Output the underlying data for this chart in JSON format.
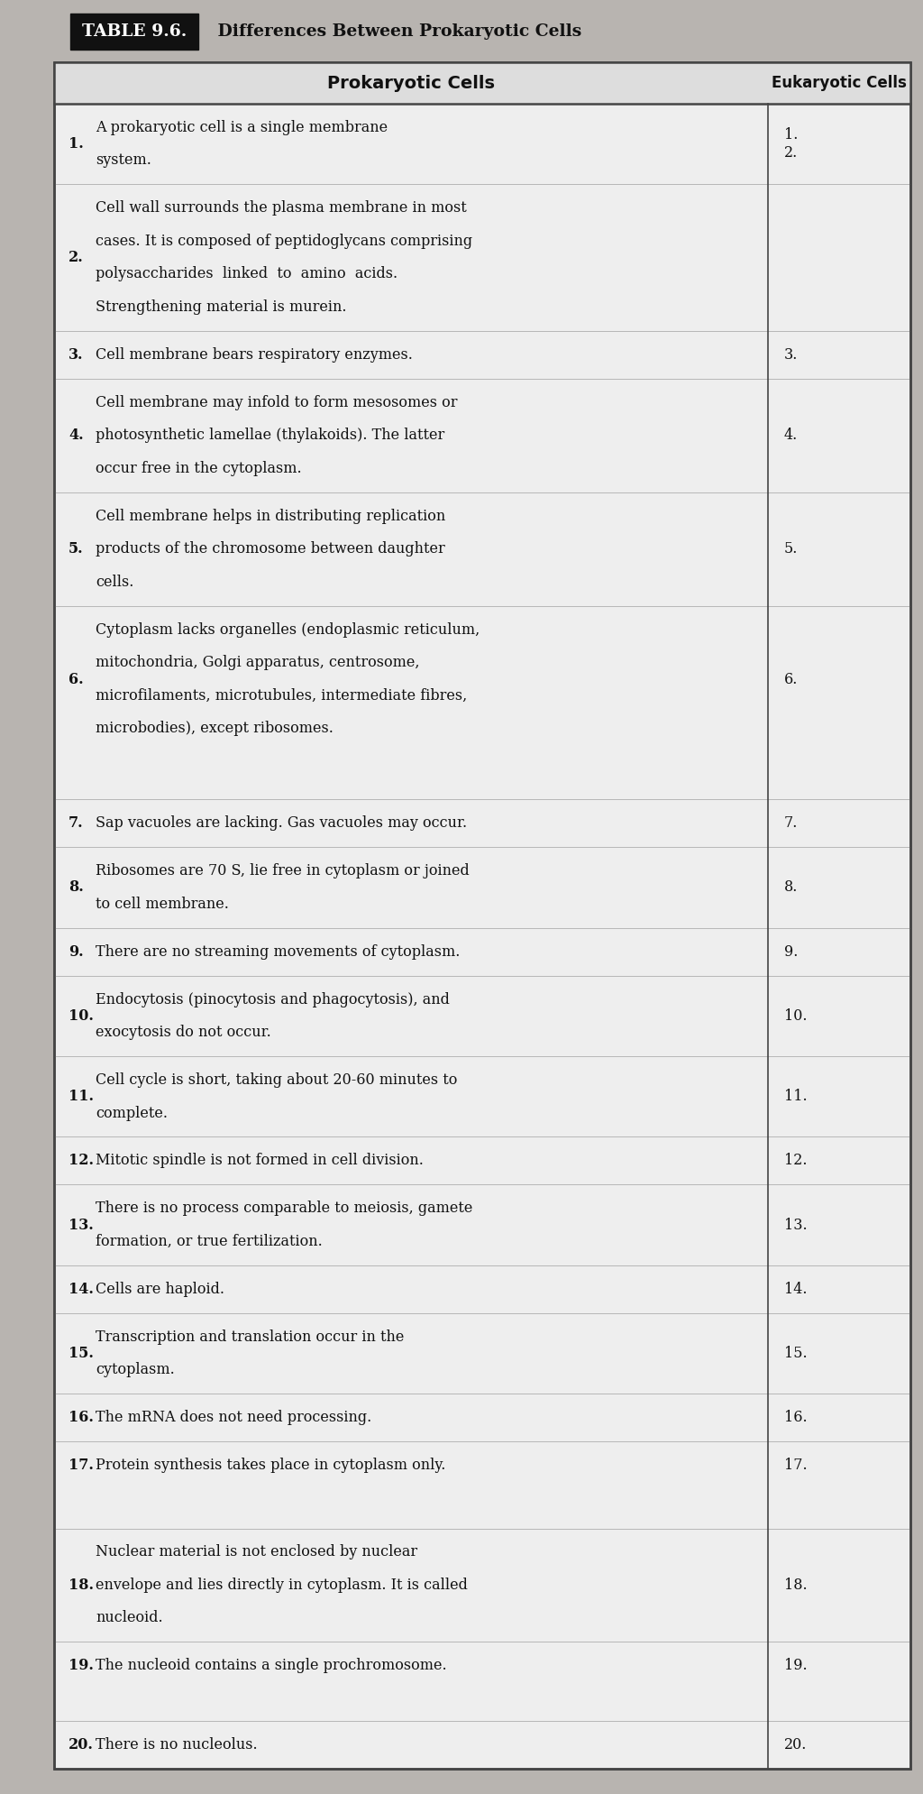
{
  "title_box_text": "TABLE 9.6.",
  "title_rest": " Differences Between Prokaryotic Cells",
  "col1_header": "Prokaryotic Cells",
  "col2_header": "Eukaryotic Cells",
  "bg_color": "#b8b4b0",
  "table_bg": "#eeeeee",
  "header_bg": "#dddddd",
  "title_box_bg": "#111111",
  "title_box_fg": "#ffffff",
  "body_fontsize": 11.5,
  "rows": [
    {
      "num": "1.",
      "lines": [
        "A prokaryotic cell is a single membrane",
        "system."
      ],
      "eukaryotic": "1.\n2."
    },
    {
      "num": "2.",
      "lines": [
        "Cell wall surrounds the plasma membrane in most",
        "cases. It is composed of peptidoglycans comprising",
        "polysaccharides  linked  to  amino  acids.",
        "Strengthening material is murein."
      ],
      "eukaryotic": ""
    },
    {
      "num": "3.",
      "lines": [
        "Cell membrane bears respiratory enzymes."
      ],
      "eukaryotic": "3."
    },
    {
      "num": "4.",
      "lines": [
        "Cell membrane may infold to form mesosomes or",
        "photosynthetic lamellae (thylakoids). The latter",
        "occur free in the cytoplasm."
      ],
      "eukaryotic": "4."
    },
    {
      "num": "5.",
      "lines": [
        "Cell membrane helps in distributing replication",
        "products of the chromosome between daughter",
        "cells."
      ],
      "eukaryotic": "5."
    },
    {
      "num": "6.",
      "lines": [
        "Cytoplasm lacks organelles (endoplasmic reticulum,",
        "mitochondria, Golgi apparatus, centrosome,",
        "microfilaments, microtubules, intermediate fibres,",
        "microbodies), except ribosomes."
      ],
      "eukaryotic": "6."
    },
    {
      "num": "7.",
      "lines": [
        "Sap vacuoles are lacking. Gas vacuoles may occur."
      ],
      "eukaryotic": "7."
    },
    {
      "num": "8.",
      "lines": [
        "Ribosomes are 70 S, lie free in cytoplasm or joined",
        "to cell membrane."
      ],
      "eukaryotic": "8."
    },
    {
      "num": "9.",
      "lines": [
        "There are no streaming movements of cytoplasm."
      ],
      "eukaryotic": "9."
    },
    {
      "num": "10.",
      "lines": [
        "Endocytosis (pinocytosis and phagocytosis), and",
        "exocytosis do not occur."
      ],
      "eukaryotic": "10."
    },
    {
      "num": "11.",
      "lines": [
        "Cell cycle is short, taking about 20-60 minutes to",
        "complete."
      ],
      "eukaryotic": "11."
    },
    {
      "num": "12.",
      "lines": [
        "Mitotic spindle is not formed in cell division."
      ],
      "eukaryotic": "12."
    },
    {
      "num": "13.",
      "lines": [
        "There is no process comparable to meiosis, gamete",
        "formation, or true fertilization."
      ],
      "eukaryotic": "13."
    },
    {
      "num": "14.",
      "lines": [
        "Cells are haploid."
      ],
      "eukaryotic": "14."
    },
    {
      "num": "15.",
      "lines": [
        "Transcription and translation occur in the",
        "cytoplasm."
      ],
      "eukaryotic": "15."
    },
    {
      "num": "16.",
      "lines": [
        "The mRNA does not need processing."
      ],
      "eukaryotic": "16."
    },
    {
      "num": "17.",
      "lines": [
        "Protein synthesis takes place in cytoplasm only."
      ],
      "eukaryotic": "17."
    },
    {
      "num": "18.",
      "lines": [
        "Nuclear material is not enclosed by nuclear",
        "envelope and lies directly in cytoplasm. It is called",
        "nucleoid."
      ],
      "eukaryotic": "18."
    },
    {
      "num": "19.",
      "lines": [
        "The nucleoid contains a single prochromosome."
      ],
      "eukaryotic": "19."
    },
    {
      "num": "20.",
      "lines": [
        "There is no nucleolus."
      ],
      "eukaryotic": "20."
    }
  ],
  "extra_space_after": {
    "5": 0.3,
    "16": 0.25,
    "18": 0.2
  }
}
